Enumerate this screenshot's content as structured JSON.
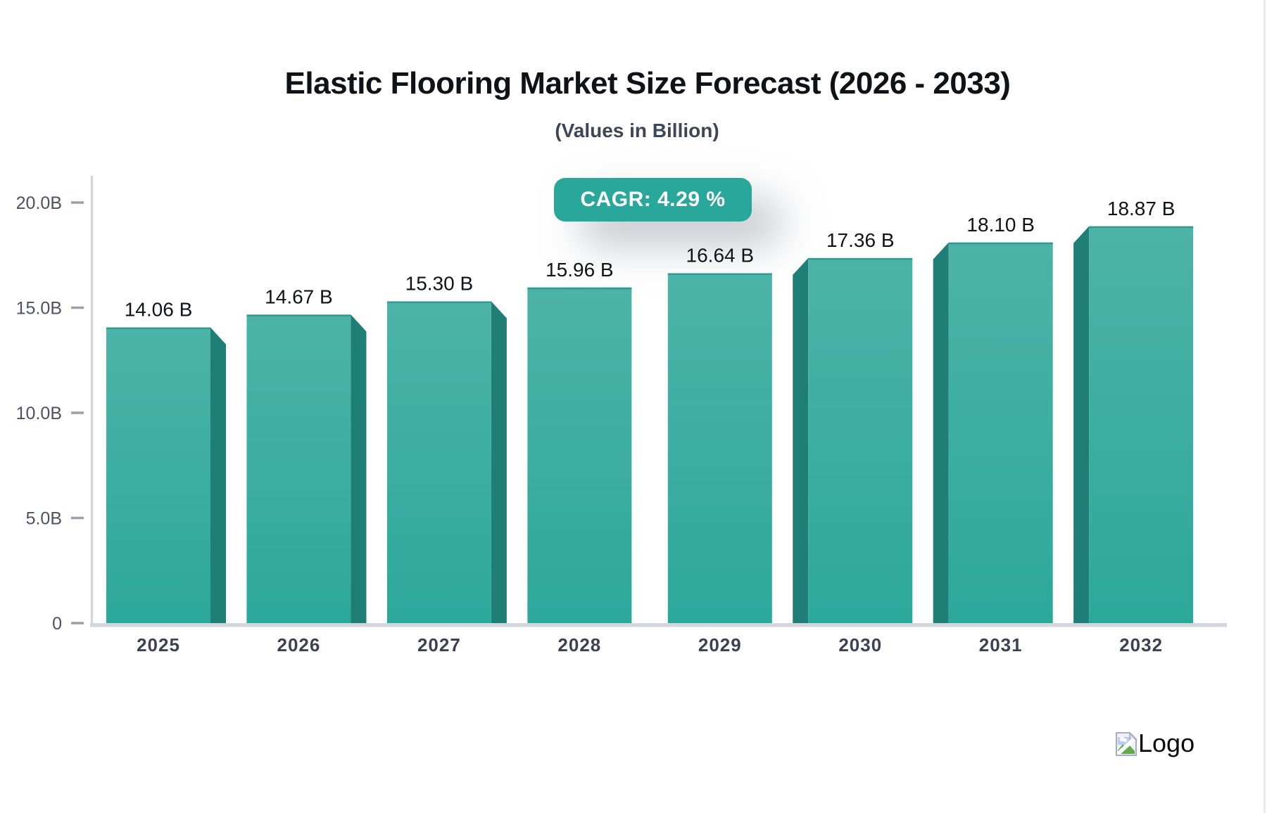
{
  "header": {
    "title": "Elastic Flooring Market Size Forecast (2026 - 2033)",
    "subtitle": "(Values in Billion)"
  },
  "badge": {
    "label": "CAGR: 4.29 %",
    "bg": "#29a79b",
    "text_color": "#ffffff"
  },
  "chart_data": {
    "type": "bar",
    "title": "Elastic Flooring Market Size Forecast (2026 - 2033)",
    "subtitle": "(Values in Billion)",
    "cagr_label": "CAGR: 4.29 %",
    "categories": [
      "2025",
      "2026",
      "2027",
      "2028",
      "2029",
      "2030",
      "2031",
      "2032"
    ],
    "values": [
      14.06,
      14.67,
      15.3,
      15.96,
      16.64,
      17.36,
      18.1,
      18.87
    ],
    "value_labels": [
      "14.06 B",
      "14.67 B",
      "15.30 B",
      "15.96 B",
      "16.64 B",
      "17.36 B",
      "18.10 B",
      "18.87 B"
    ],
    "ylim": [
      0,
      20
    ],
    "yticks": [
      {
        "value": 0,
        "label": "0"
      },
      {
        "value": 5,
        "label": "5.0B"
      },
      {
        "value": 10,
        "label": "10.0B"
      },
      {
        "value": 15,
        "label": "15.0B"
      },
      {
        "value": 20,
        "label": "20.0B"
      }
    ],
    "grid": false,
    "legend": false,
    "colors": {
      "bar_face_top": "#4db3a8",
      "bar_face_bottom": "#2ca89b",
      "bar_side": "#1f7e75",
      "bar_top_edge": "#2f9a8e",
      "axis_line": "#d2d6dd",
      "tick": "#9aa1ac",
      "value_label": "#111319",
      "category_label": "#3a4254",
      "ytick_label": "#4b5263"
    }
  },
  "footer": {
    "logo_alt": "Logo"
  }
}
